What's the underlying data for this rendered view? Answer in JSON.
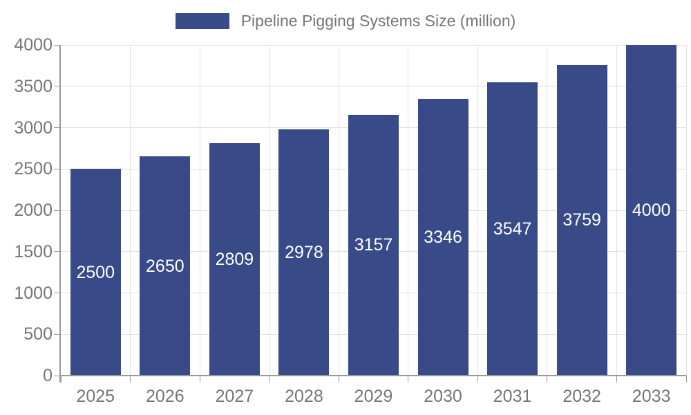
{
  "chart_data": {
    "type": "bar",
    "title": "Pipeline Pigging Systems Size (million)",
    "categories": [
      "2025",
      "2026",
      "2027",
      "2028",
      "2029",
      "2030",
      "2031",
      "2032",
      "2033"
    ],
    "values": [
      2500,
      2650,
      2809,
      2978,
      3157,
      3346,
      3547,
      3759,
      4000
    ],
    "bar_value_labels": [
      "2500",
      "2650",
      "2809",
      "2978",
      "3157",
      "3346",
      "3547",
      "3759",
      "4000"
    ],
    "xlabel": "",
    "ylabel": "",
    "ylim": [
      0,
      4000
    ],
    "yticks": [
      0,
      500,
      1000,
      1500,
      2000,
      2500,
      3000,
      3500,
      4000
    ],
    "grid": true,
    "legend_position": "top",
    "colors": {
      "bar": "#384a87",
      "value_label": "#ffffff",
      "axis_text": "#757575",
      "gridline": "#e0e0e0",
      "axis_line": "#999999",
      "background": "#ffffff"
    }
  },
  "legend": {
    "label": "Pipeline Pigging Systems Size (million)"
  }
}
